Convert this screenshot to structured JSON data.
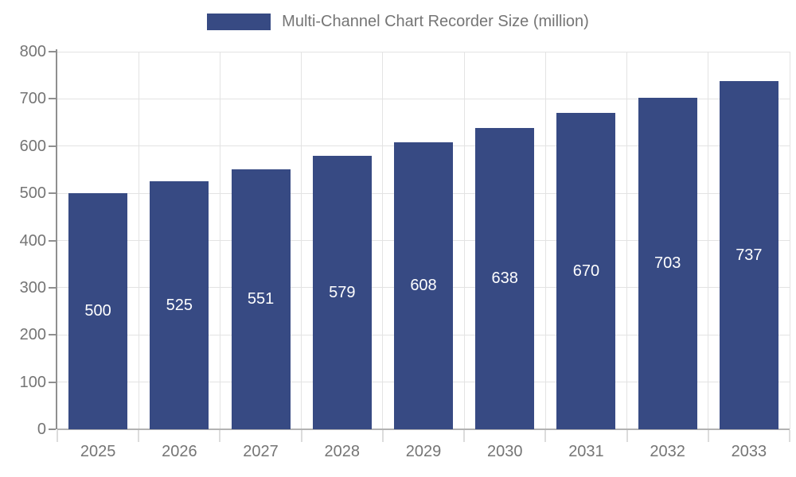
{
  "chart_data": {
    "type": "bar",
    "title": "Multi-Channel Chart Recorder Size (million)",
    "series_name": "Multi-Channel Chart Recorder Size (million)",
    "categories": [
      "2025",
      "2026",
      "2027",
      "2028",
      "2029",
      "2030",
      "2031",
      "2032",
      "2033"
    ],
    "values": [
      500,
      525,
      551,
      579,
      608,
      638,
      670,
      703,
      737
    ],
    "value_labels": [
      "500",
      "525",
      "551",
      "579",
      "608",
      "638",
      "670",
      "703",
      "737"
    ],
    "xlabel": "",
    "ylabel": "",
    "ylim": [
      0,
      800
    ],
    "yticks": [
      0,
      100,
      200,
      300,
      400,
      500,
      600,
      700,
      800
    ],
    "grid": true,
    "legend_position": "top-center",
    "bar_color": "#374a83",
    "value_label_color": "#ffffff",
    "tick_label_color": "#757575",
    "grid_color": "#e3e3e3",
    "axis_color": "#8f8f8f",
    "baseline_color": "#b3b3b3"
  }
}
